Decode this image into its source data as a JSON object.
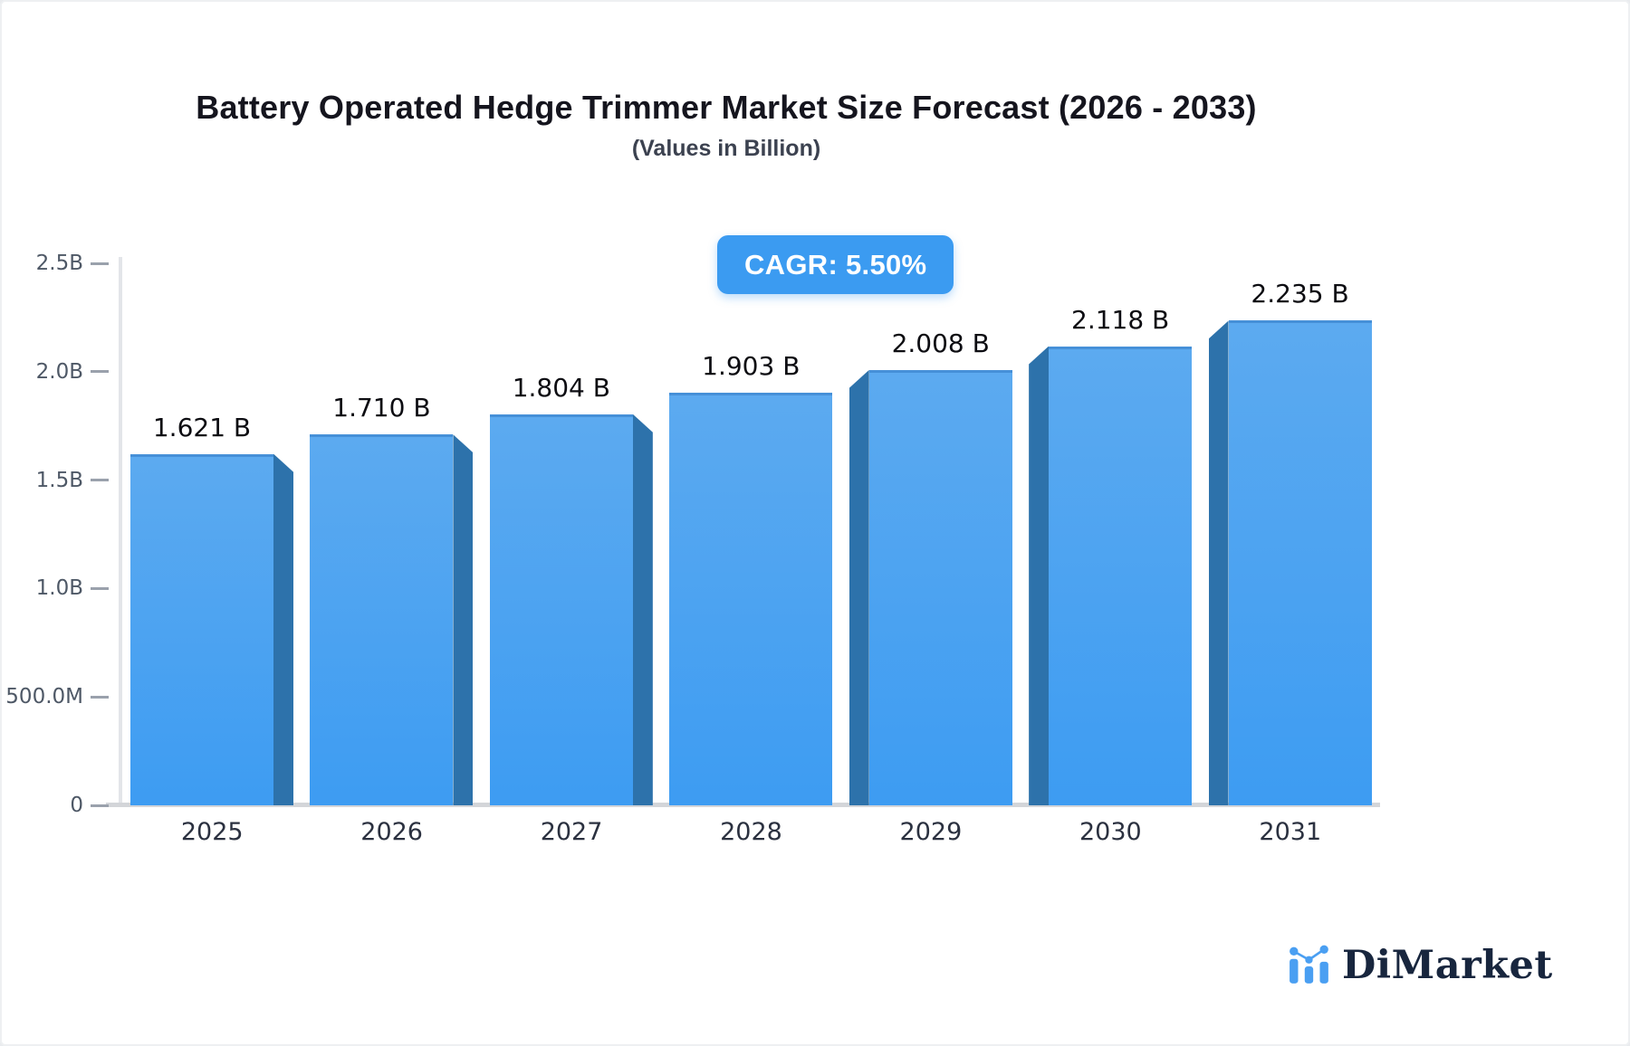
{
  "title": "Battery Operated Hedge Trimmer Market Size Forecast (2026 - 2033)",
  "subtitle": "(Values in Billion)",
  "cagr": {
    "label": "CAGR: 5.50%"
  },
  "logo": {
    "text": "DiMarket",
    "icon": "mini-bar-chart-icon"
  },
  "colors": {
    "title_color": "#15151e",
    "subtitle_color": "#3c4250",
    "badge_bg": "#3b9bf1",
    "bar_face_top": "#5caaf0",
    "bar_face_bottom": "#3d9cf2",
    "bar_side": "#2d72ab",
    "bar_top_edge": "#4690d8",
    "axis_line": "#e3e5e9",
    "baseline": "#d3d5d9",
    "tick": "#9aa1ac",
    "tick_label": "#4e5866",
    "value_label": "#0d0d12",
    "year_label": "#2b3140",
    "logo_text": "#18263e",
    "logo_icon": "#4a9ff2"
  },
  "chart_data": {
    "type": "bar",
    "title": "Battery Operated Hedge Trimmer Market Size Forecast (2026 - 2033)",
    "subtitle": "(Values in Billion)",
    "categories": [
      "2025",
      "2026",
      "2027",
      "2028",
      "2029",
      "2030",
      "2031"
    ],
    "values": [
      1.621,
      1.71,
      1.804,
      1.903,
      2.008,
      2.118,
      2.235
    ],
    "value_labels": [
      "1.621 B",
      "1.710 B",
      "1.804 B",
      "1.903 B",
      "2.008 B",
      "2.118 B",
      "2.235 B"
    ],
    "ylim": [
      0,
      2.5
    ],
    "ytick_values": [
      0,
      0.5,
      1.0,
      1.5,
      2.0,
      2.5
    ],
    "ytick_labels": [
      "0",
      "500.0M",
      "1.0B",
      "1.5B",
      "2.0B",
      "2.5B"
    ],
    "grid": false,
    "legend": "none",
    "bar_style": "3d-beveled",
    "annotations": [
      "CAGR: 5.50%"
    ]
  }
}
